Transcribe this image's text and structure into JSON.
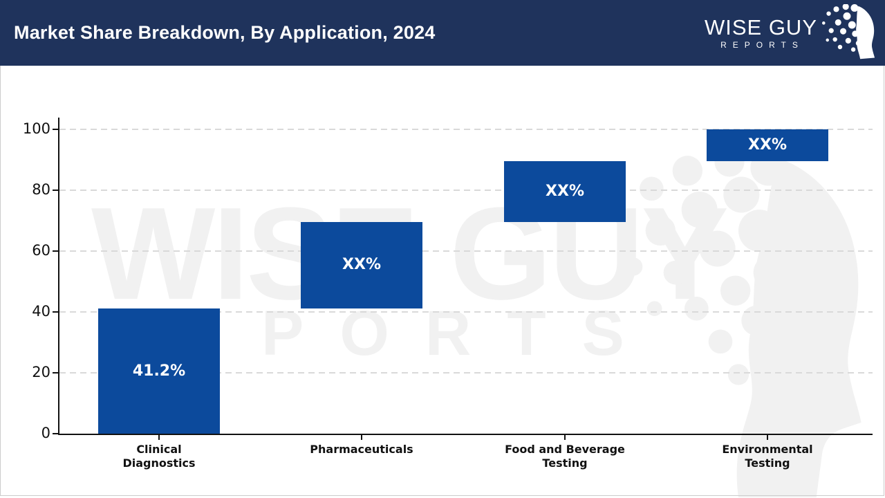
{
  "header": {
    "title": "Market Share Breakdown, By Application, 2024",
    "logo": {
      "brand": "WISE GUY",
      "sub": "REPORTS"
    }
  },
  "watermark": {
    "brand": "WISE GUY",
    "sub": "PORTS"
  },
  "chart_data": {
    "type": "bar",
    "subtype": "waterfall",
    "title": "Market Share Breakdown, By Application, 2024",
    "categories": [
      "Clinical Diagnostics",
      "Pharmaceuticals",
      "Food and Beverage Testing",
      "Environmental Testing"
    ],
    "categories_lines": [
      [
        "Clinical",
        "Diagnostics"
      ],
      [
        "Pharmaceuticals"
      ],
      [
        "Food and Beverage",
        "Testing"
      ],
      [
        "Environmental",
        "Testing"
      ]
    ],
    "segments": [
      {
        "category": "Clinical Diagnostics",
        "start": 0,
        "end": 41.2,
        "label": "41.2%"
      },
      {
        "category": "Pharmaceuticals",
        "start": 41.2,
        "end": 69.5,
        "label": "XX%"
      },
      {
        "category": "Food and Beverage Testing",
        "start": 69.5,
        "end": 89.5,
        "label": "XX%"
      },
      {
        "category": "Environmental Testing",
        "start": 89.5,
        "end": 100,
        "label": "XX%"
      }
    ],
    "yticks": [
      0,
      20,
      40,
      60,
      80,
      100
    ],
    "ylim": [
      0,
      100
    ],
    "xlabel": "",
    "ylabel": "",
    "grid": "horizontal-dashed",
    "legend": "none",
    "colors": {
      "bar": "#0c4a9c",
      "grid": "#d9d9d9",
      "axis": "#111111",
      "bar_label_text": "#ffffff",
      "header_bg": "#1f335c",
      "header_text": "#ffffff",
      "watermark": "#f1f1f1"
    }
  }
}
